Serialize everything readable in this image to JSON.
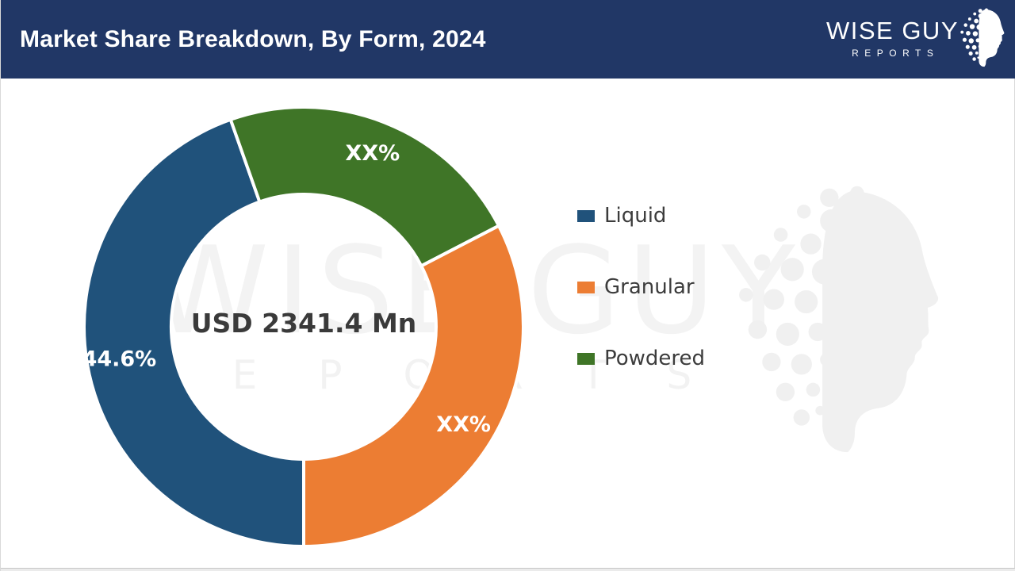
{
  "colors": {
    "navy": "#213766",
    "center_text": "#3a3a3a",
    "watermark_gray": "#f2f2f2",
    "segment_label_white": "#ffffff"
  },
  "header": {
    "title": "Market Share Breakdown, By Form, 2024",
    "logo": {
      "primary": "WISE GUY",
      "secondary": "REPORTS"
    }
  },
  "watermark": {
    "primary": "WISE GUY",
    "secondary": "REPORTS"
  },
  "chart_data": {
    "type": "pie",
    "subtype": "donut",
    "title": "Market Share Breakdown, By Form, 2024",
    "center_label": "USD 2341.4 Mn",
    "units": "percent of market share",
    "segments": [
      {
        "label": "Liquid",
        "value_pct": 44.6,
        "display": "44.6%",
        "color": "#20527B"
      },
      {
        "label": "Granular",
        "value_pct": 32.6,
        "display": "XX%",
        "color": "#EC7D33"
      },
      {
        "label": "Powdered",
        "value_pct": 22.8,
        "display": "XX%",
        "color": "#3F7527"
      }
    ],
    "start_angle_deg": 180,
    "direction": "clockwise",
    "draw_order": [
      "Liquid",
      "Powdered",
      "Granular"
    ],
    "donut_hole_ratio": 0.6,
    "legend_position": "right",
    "separator_color": "#ffffff"
  }
}
